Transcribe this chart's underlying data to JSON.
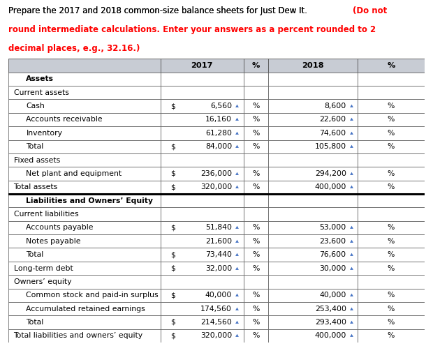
{
  "title_line1_black": "Prepare the 2017 and 2018 common-size balance sheets for Just Dew It. ",
  "title_line1_red": "(Do not",
  "title_line2_red": "round intermediate calculations. Enter your answers as a percent rounded to 2",
  "title_line3_red": "decimal places, e.g., 32.16.)",
  "header_bg": "#c8ccd4",
  "row_bg_white": "#ffffff",
  "thick_border_row": 8,
  "col_bounds": [
    0.0,
    0.365,
    0.565,
    0.625,
    0.84,
    1.0
  ],
  "rows": [
    {
      "label": "Assets",
      "indent": 1,
      "bold": true,
      "val2017": "",
      "dollar2017": false,
      "val2018": "",
      "dollar2018": false,
      "has_pct": false
    },
    {
      "label": "Current assets",
      "indent": 0,
      "bold": false,
      "val2017": "",
      "dollar2017": false,
      "val2018": "",
      "dollar2018": false,
      "has_pct": false
    },
    {
      "label": "Cash",
      "indent": 1,
      "bold": false,
      "val2017": "6,560",
      "dollar2017": true,
      "val2018": "8,600",
      "dollar2018": false,
      "has_pct": true
    },
    {
      "label": "Accounts receivable",
      "indent": 1,
      "bold": false,
      "val2017": "16,160",
      "dollar2017": false,
      "val2018": "22,600",
      "dollar2018": false,
      "has_pct": true
    },
    {
      "label": "Inventory",
      "indent": 1,
      "bold": false,
      "val2017": "61,280",
      "dollar2017": false,
      "val2018": "74,600",
      "dollar2018": false,
      "has_pct": true
    },
    {
      "label": "Total",
      "indent": 1,
      "bold": false,
      "val2017": "84,000",
      "dollar2017": true,
      "val2018": "105,800",
      "dollar2018": false,
      "has_pct": true
    },
    {
      "label": "Fixed assets",
      "indent": 0,
      "bold": false,
      "val2017": "",
      "dollar2017": false,
      "val2018": "",
      "dollar2018": false,
      "has_pct": false
    },
    {
      "label": "Net plant and equipment",
      "indent": 1,
      "bold": false,
      "val2017": "236,000",
      "dollar2017": true,
      "val2018": "294,200",
      "dollar2018": false,
      "has_pct": true
    },
    {
      "label": "Total assets",
      "indent": 0,
      "bold": false,
      "val2017": "320,000",
      "dollar2017": true,
      "val2018": "400,000",
      "dollar2018": false,
      "has_pct": true,
      "thick_bottom": true
    },
    {
      "label": "Liabilities and Owners’ Equity",
      "indent": 1,
      "bold": true,
      "val2017": "",
      "dollar2017": false,
      "val2018": "",
      "dollar2018": false,
      "has_pct": false
    },
    {
      "label": "Current liabilities",
      "indent": 0,
      "bold": false,
      "val2017": "",
      "dollar2017": false,
      "val2018": "",
      "dollar2018": false,
      "has_pct": false
    },
    {
      "label": "Accounts payable",
      "indent": 1,
      "bold": false,
      "val2017": "51,840",
      "dollar2017": true,
      "val2018": "53,000",
      "dollar2018": false,
      "has_pct": true
    },
    {
      "label": "Notes payable",
      "indent": 1,
      "bold": false,
      "val2017": "21,600",
      "dollar2017": false,
      "val2018": "23,600",
      "dollar2018": false,
      "has_pct": true
    },
    {
      "label": "Total",
      "indent": 1,
      "bold": false,
      "val2017": "73,440",
      "dollar2017": true,
      "val2018": "76,600",
      "dollar2018": false,
      "has_pct": true
    },
    {
      "label": "Long-term debt",
      "indent": 0,
      "bold": false,
      "val2017": "32,000",
      "dollar2017": true,
      "val2018": "30,000",
      "dollar2018": false,
      "has_pct": true
    },
    {
      "label": "Owners’ equity",
      "indent": 0,
      "bold": false,
      "val2017": "",
      "dollar2017": false,
      "val2018": "",
      "dollar2018": false,
      "has_pct": false
    },
    {
      "label": "Common stock and paid-in surplus",
      "indent": 1,
      "bold": false,
      "val2017": "40,000",
      "dollar2017": true,
      "val2018": "40,000",
      "dollar2018": false,
      "has_pct": true
    },
    {
      "label": "Accumulated retained earnings",
      "indent": 1,
      "bold": false,
      "val2017": "174,560",
      "dollar2017": false,
      "val2018": "253,400",
      "dollar2018": false,
      "has_pct": true
    },
    {
      "label": "Total",
      "indent": 1,
      "bold": false,
      "val2017": "214,560",
      "dollar2017": true,
      "val2018": "293,400",
      "dollar2018": false,
      "has_pct": true
    },
    {
      "label": "Total liabilities and owners’ equity",
      "indent": 0,
      "bold": false,
      "val2017": "320,000",
      "dollar2017": true,
      "val2018": "400,000",
      "dollar2018": false,
      "has_pct": true
    }
  ]
}
